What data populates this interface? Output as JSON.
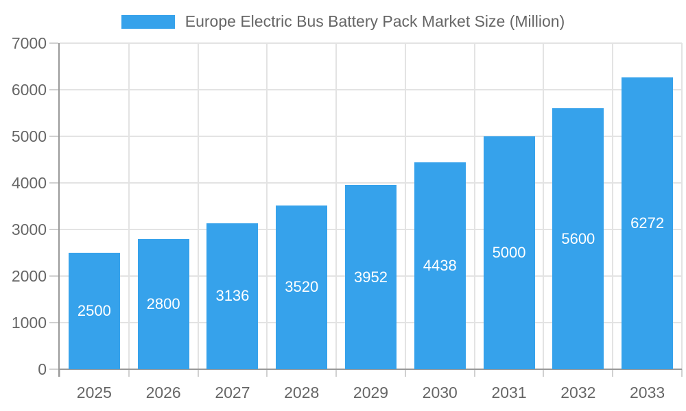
{
  "chart_data": {
    "type": "bar",
    "title": "Europe Electric Bus Battery Pack Market Size (Million)",
    "categories": [
      "2025",
      "2026",
      "2027",
      "2028",
      "2029",
      "2030",
      "2031",
      "2032",
      "2033"
    ],
    "values": [
      2500,
      2800,
      3136,
      3520,
      3952,
      4438,
      5000,
      5600,
      6272
    ],
    "xlabel": "",
    "ylabel": "",
    "ylim": [
      0,
      7000
    ],
    "ytick_step": 1000,
    "grid": true,
    "legend_position": "top-center",
    "bar_label_position": "inside-center"
  },
  "colors": {
    "bar": "#36A2EB",
    "bar_label": "#FFFFFF",
    "grid": "#E3E3E3",
    "tick": "#D0D0D0",
    "axis": "#999999",
    "text": "#666666",
    "background": "#FFFFFF"
  }
}
